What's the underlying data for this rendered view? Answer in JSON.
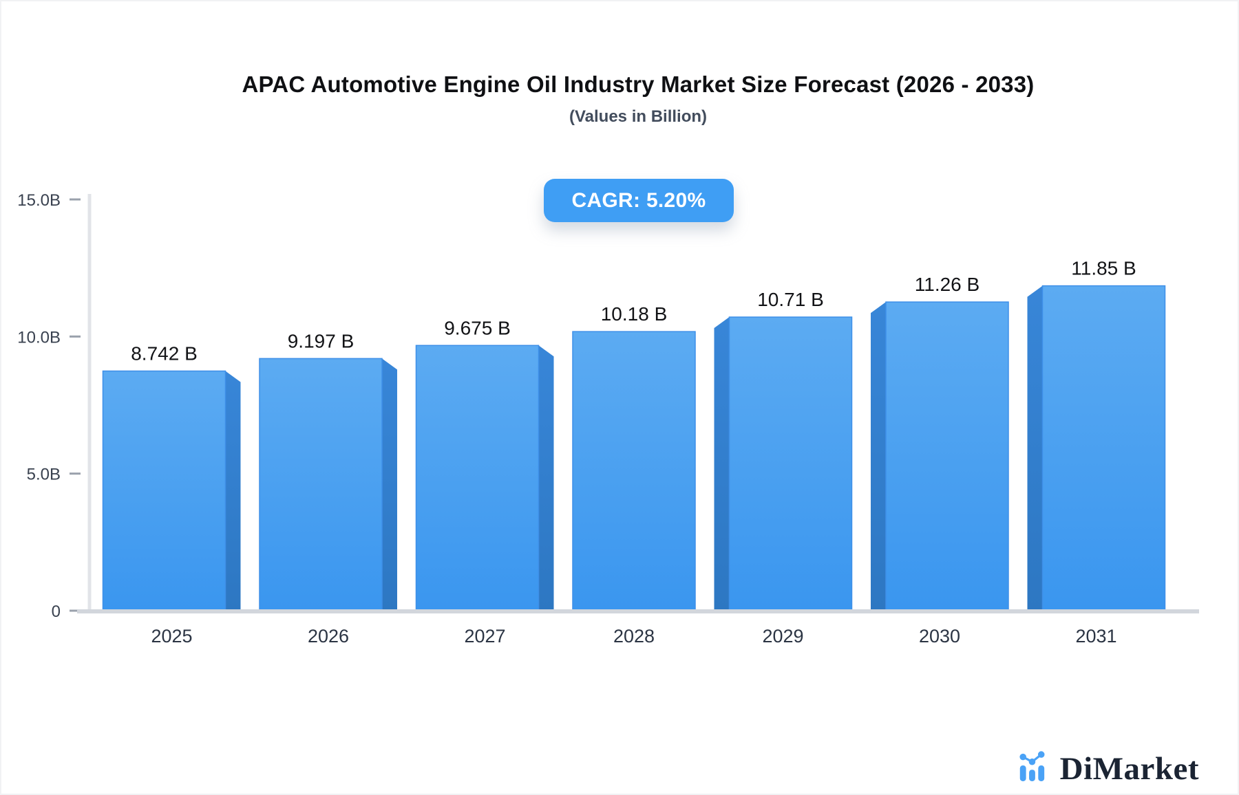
{
  "badge": {
    "label": "CAGR: 5.20%"
  },
  "logo": {
    "name": "DiMarket",
    "icon": "bar-chart-trend-icon"
  },
  "colors": {
    "bar_top": "#5cabf2",
    "bar_bottom": "#3a96ef",
    "bar_side_top": "#3886d8",
    "bar_side_bottom": "#2d77c2",
    "bar_border": "#3e8fe8",
    "badge_bg": "#3f9ef4",
    "badge_text": "#ffffff",
    "logo_blue": "#4aa2f6",
    "logo_text": "#1b2433",
    "axis_line": "#e2e4e8",
    "baseline": "#d2d6dc",
    "tick": "#9aa1ac",
    "value_label": "#121316",
    "category_label": "#2b3443",
    "ytick_label": "#39414f"
  },
  "chart_data": {
    "type": "bar",
    "title": "APAC Automotive Engine Oil Industry Market Size Forecast (2026 - 2033)",
    "subtitle": "(Values in Billion)",
    "categories": [
      "2025",
      "2026",
      "2027",
      "2028",
      "2029",
      "2030",
      "2031"
    ],
    "values": [
      8.742,
      9.197,
      9.675,
      10.18,
      10.71,
      11.26,
      11.85
    ],
    "value_labels": [
      "8.742 B",
      "9.197 B",
      "9.675 B",
      "10.18 B",
      "10.71 B",
      "11.26 B",
      "11.85 B"
    ],
    "xlabel": "",
    "ylabel": "",
    "ylim": [
      0,
      15
    ],
    "yticks": [
      {
        "value": 0,
        "label": "0"
      },
      {
        "value": 5,
        "label": "5.0B"
      },
      {
        "value": 10,
        "label": "10.0B"
      },
      {
        "value": 15,
        "label": "15.0B"
      }
    ],
    "grid": false,
    "legend_position": "none",
    "bar_style": "3d-extruded-toward-center"
  }
}
